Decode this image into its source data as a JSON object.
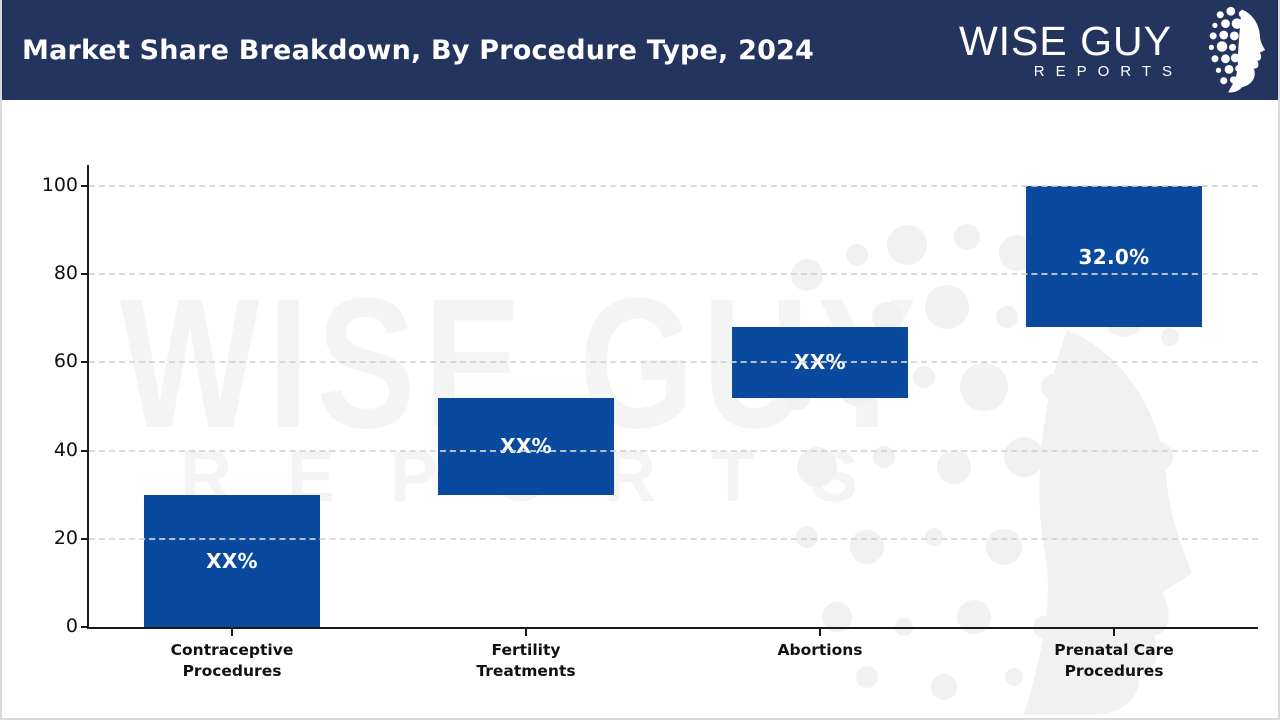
{
  "header": {
    "title": "Market Share Breakdown, By Procedure Type, 2024",
    "logo": {
      "line1": "WISE GUY",
      "line2": "REPORTS"
    }
  },
  "watermark": {
    "line1": "WISE GUY",
    "line2": "REPORTS"
  },
  "colors": {
    "header_bg": "#23345e",
    "bar_blue": "#0a4a9e",
    "bar_label": "#ffffff",
    "gridline": "#d4d4d4",
    "axis": "#1a1a1a",
    "watermark": "#f4f4f4"
  },
  "chart_data": {
    "type": "bar",
    "subtype": "waterfall",
    "title": "Market Share Breakdown, By Procedure Type, 2024",
    "xlabel": "",
    "ylabel": "",
    "categories": [
      "Contraceptive\nProcedures",
      "Fertility\nTreatments",
      "Abortions",
      "Prenatal Care\nProcedures"
    ],
    "series": [
      {
        "name": "Market Share (%)",
        "segments": [
          {
            "category": "Contraceptive Procedures",
            "start": 0,
            "end": 30,
            "value": 30,
            "label": "XX%"
          },
          {
            "category": "Fertility Treatments",
            "start": 30,
            "end": 52,
            "value": 22,
            "label": "XX%"
          },
          {
            "category": "Abortions",
            "start": 52,
            "end": 68,
            "value": 16,
            "label": "XX%"
          },
          {
            "category": "Prenatal Care Procedures",
            "start": 68,
            "end": 100,
            "value": 32,
            "label": "32.0%"
          }
        ]
      }
    ],
    "ylim": [
      0,
      100
    ],
    "yticks": [
      0,
      20,
      40,
      60,
      80,
      100
    ],
    "grid": true,
    "grid_style": "dashed",
    "legend": "none",
    "bar_color": "#0a4a9e"
  }
}
